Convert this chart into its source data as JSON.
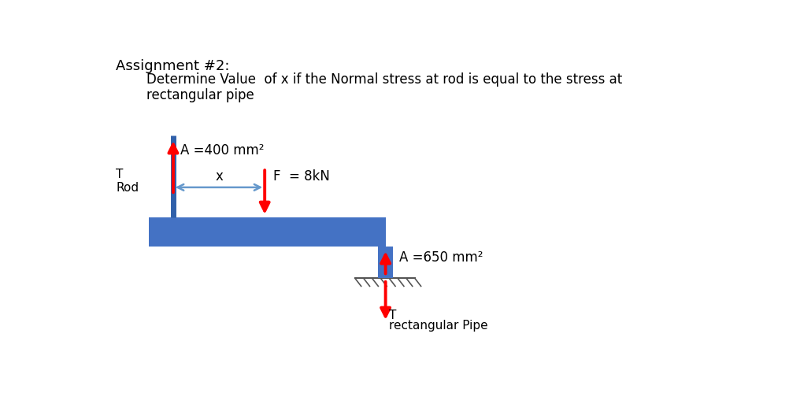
{
  "title": "Assignment #2:",
  "subtitle": "Determine Value  of x if the Normal stress at rod is equal to the stress at\nrectangular pipe",
  "bg_color": "#ffffff",
  "blue_color": "#4472C4",
  "red_color": "#FF0000",
  "dark_blue_rod": "#3060AA",
  "rod_label_A": "A =400 mm²",
  "force_label": "F  = 8kN",
  "x_label": "x",
  "pipe_label_A": "A =650 mm²",
  "title_fontsize": 13,
  "subtitle_fontsize": 12,
  "label_fontsize": 12
}
